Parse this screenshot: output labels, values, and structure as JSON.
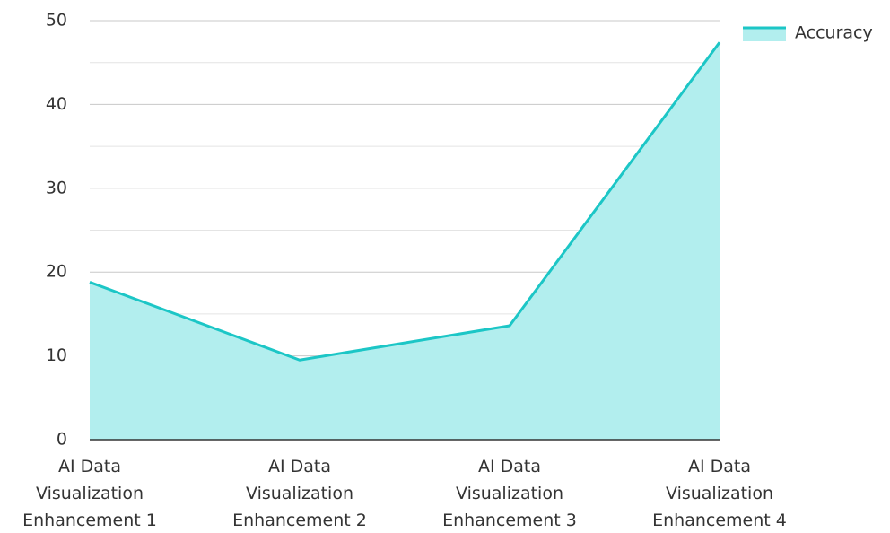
{
  "chart_data": {
    "type": "area",
    "categories": [
      "AI Data Visualization Enhancement 1",
      "AI Data Visualization Enhancement 2",
      "AI Data Visualization Enhancement 3",
      "AI Data Visualization Enhancement 4"
    ],
    "series": [
      {
        "name": "Accuracy",
        "color": "#1cc6c6",
        "fill": "#b2eeee",
        "values": [
          18.8,
          9.5,
          13.6,
          47.4
        ]
      }
    ],
    "ylim": [
      0,
      50
    ],
    "yticks": [
      0,
      10,
      20,
      30,
      40,
      50
    ],
    "minor_yticks": [
      5,
      15,
      25,
      35,
      45
    ],
    "grid": true,
    "legend": "top-right"
  }
}
